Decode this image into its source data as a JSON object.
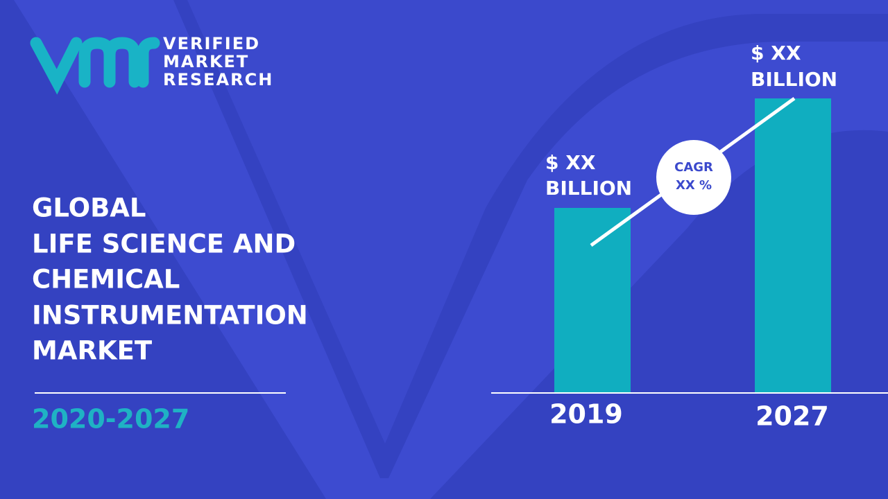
{
  "logo": {
    "lines": [
      "VERIFIED",
      "MARKET",
      "RESEARCH"
    ]
  },
  "title": {
    "lines": [
      "GLOBAL",
      "LIFE SCIENCE AND",
      "CHEMICAL",
      "INSTRUMENTATION",
      "MARKET"
    ]
  },
  "period": "2020-2027",
  "bars": [
    {
      "amount": "$ XX",
      "unit": "BILLION",
      "year": "2019"
    },
    {
      "amount": "$ XX",
      "unit": "BILLION",
      "year": "2027"
    }
  ],
  "cagr": {
    "lines": [
      "CAGR",
      "XX %"
    ]
  }
}
